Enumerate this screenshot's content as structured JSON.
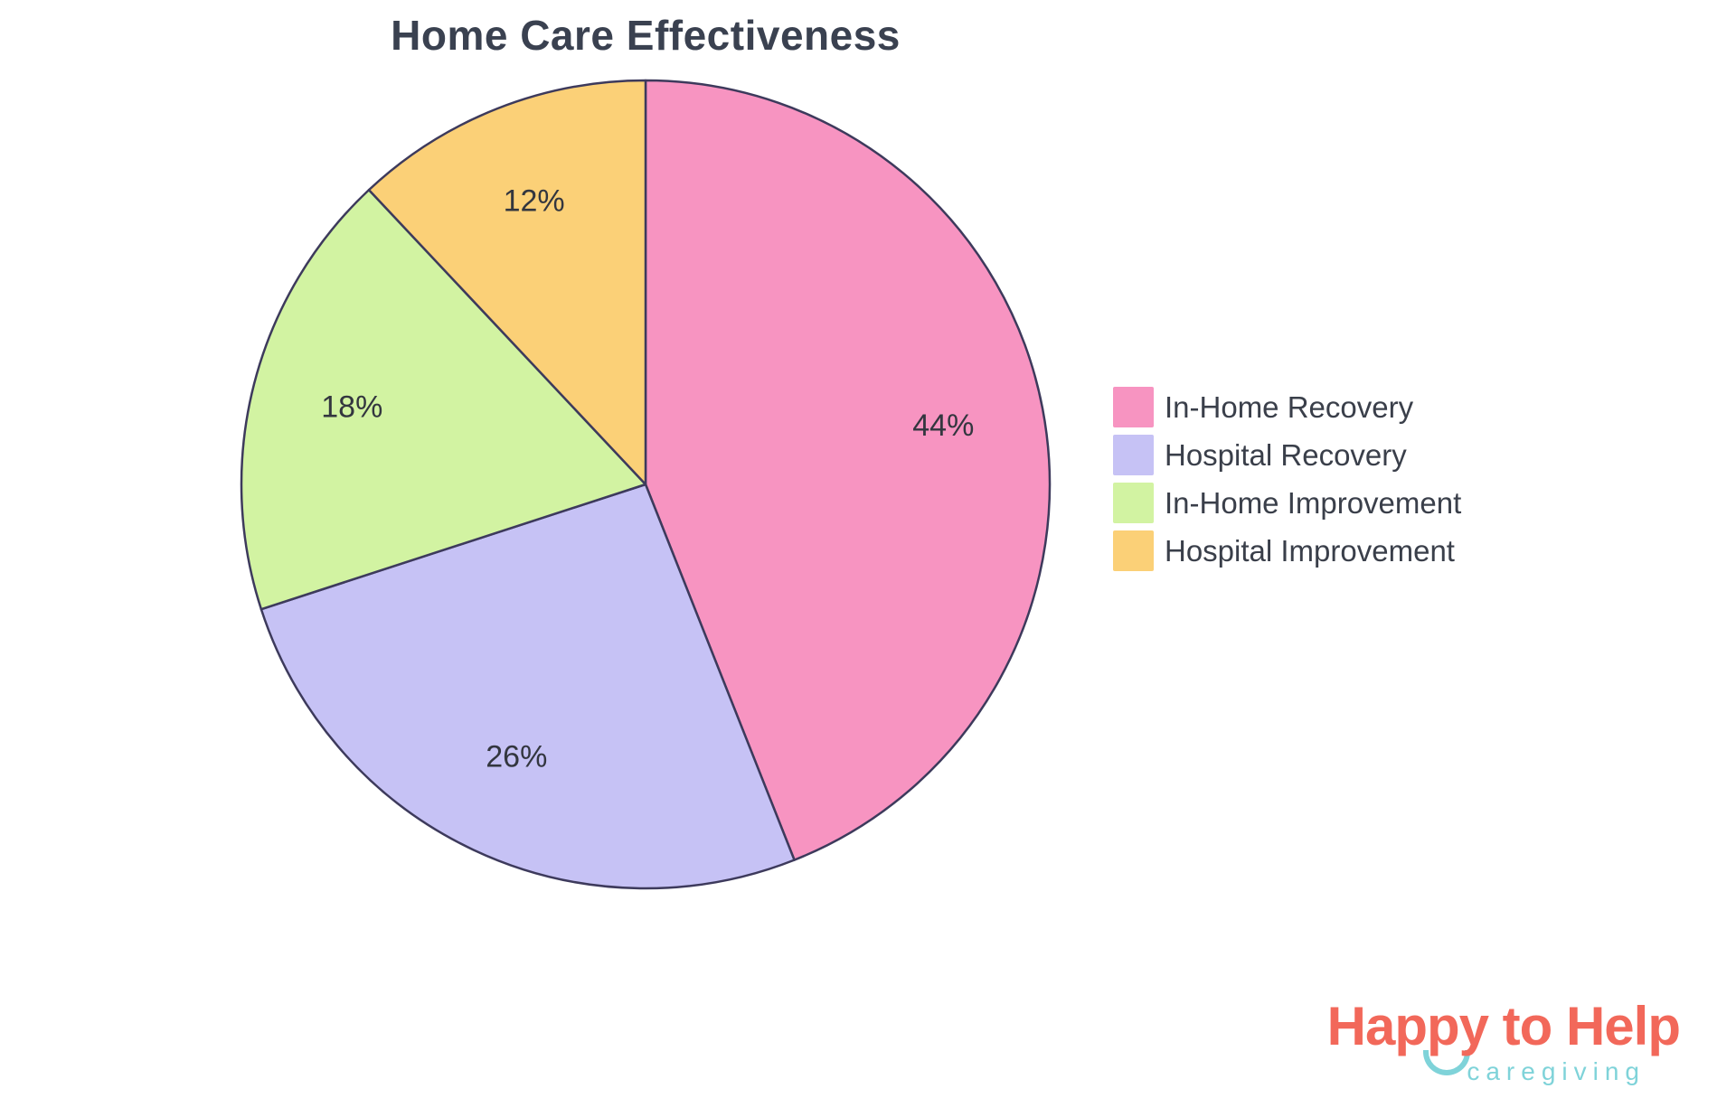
{
  "title": "Home Care Effectiveness",
  "chart_data": {
    "type": "pie",
    "title": "Home Care Effectiveness",
    "labels": [
      "In-Home Recovery",
      "Hospital Recovery",
      "In-Home Improvement",
      "Hospital Improvement"
    ],
    "values": [
      44,
      26,
      18,
      12
    ],
    "value_labels": [
      "44%",
      "26%",
      "18%",
      "12%"
    ],
    "colors": [
      "#F794C1",
      "#C6C2F5",
      "#D2F3A2",
      "#FBD077"
    ],
    "stroke_color": "#3D3A5C",
    "start_angle_deg": 0,
    "direction": "clockwise",
    "legend_position": "right",
    "label_text_color": "#33363F"
  },
  "legend": {
    "items": [
      {
        "label": "In-Home Recovery",
        "color": "#F794C1"
      },
      {
        "label": "Hospital Recovery",
        "color": "#C6C2F5"
      },
      {
        "label": "In-Home Improvement",
        "color": "#D2F3A2"
      },
      {
        "label": "Hospital Improvement",
        "color": "#FBD077"
      }
    ]
  },
  "logo": {
    "brand": "Happy to Help",
    "tagline": "caregiving",
    "brand_color": "#F2685A",
    "tagline_color": "#7FD3D9",
    "icon": "smile-icon"
  }
}
